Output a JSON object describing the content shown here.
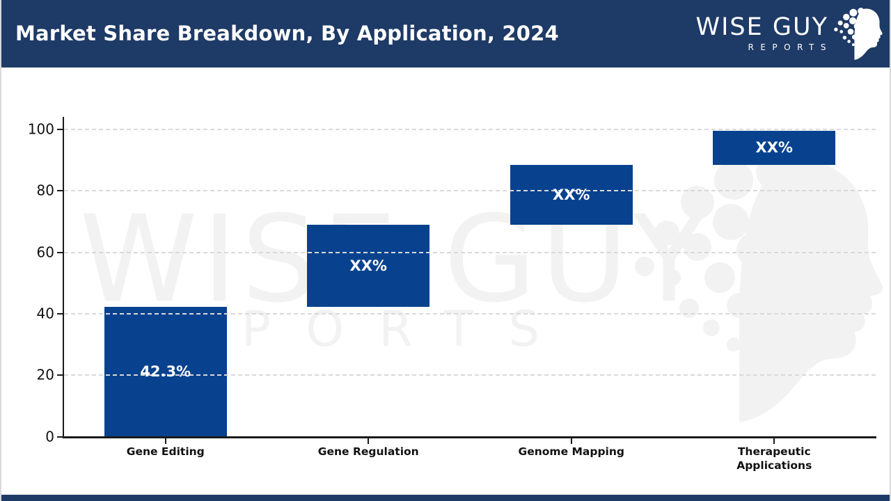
{
  "header": {
    "title": "Market Share Breakdown, By Application, 2024"
  },
  "logo": {
    "line1": "WISE GUY",
    "line2": "REPORTS",
    "head_icon": "dotted-head-profile"
  },
  "watermark": {
    "line1": "WISE GUY",
    "line2": "REPORTS"
  },
  "colors": {
    "header_navy": "#1e3a66",
    "bar_blue": "#08428f",
    "grid_gray": "#d9d9d9",
    "axis_black": "#1a1a1a",
    "bar_label_white": "#ffffff",
    "watermark_gray": "#f2f2f3"
  },
  "chart_data": {
    "type": "bar",
    "subtype": "waterfall",
    "title": "Market Share Breakdown, By Application, 2024",
    "categories": [
      "Gene Editing",
      "Gene Regulation",
      "Genome Mapping",
      "Therapeutic Applications"
    ],
    "segments": [
      {
        "start": 0,
        "end": 42.3,
        "label": "42.3%"
      },
      {
        "start": 42.3,
        "end": 69.0,
        "label": "XX%"
      },
      {
        "start": 69.0,
        "end": 88.5,
        "label": "XX%"
      },
      {
        "start": 88.5,
        "end": 99.5,
        "label": "XX%"
      }
    ],
    "xlabel": "",
    "ylabel": "",
    "yticks": [
      0,
      20,
      40,
      60,
      80,
      100
    ],
    "ylim": [
      0,
      104
    ],
    "grid": "horizontal-dashed",
    "legend": "none",
    "bar_color": "#08428f",
    "value_label_position": "inside-center"
  }
}
